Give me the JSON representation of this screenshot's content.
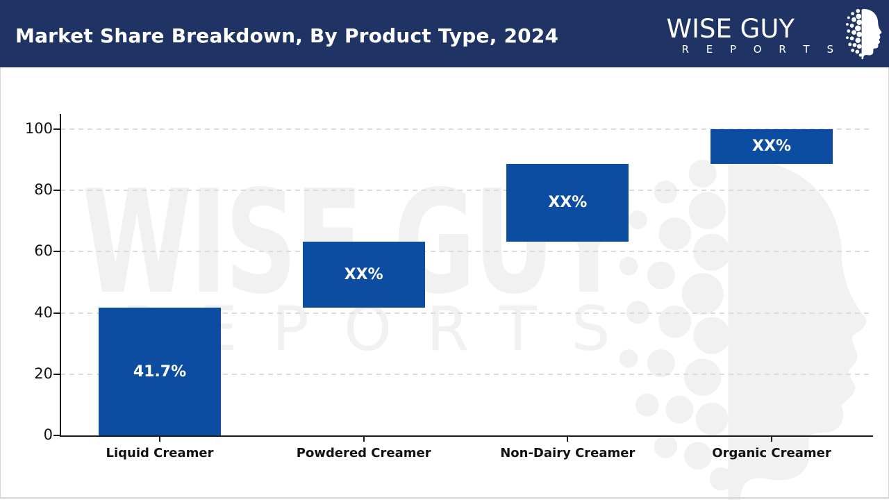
{
  "header": {
    "title": "Market Share Breakdown, By Product Type, 2024",
    "bg_color": "#1f3464",
    "logo": {
      "name": "WISE GUY",
      "sub": "R E P O R T S"
    }
  },
  "watermark": {
    "big_text": "WISE GUY",
    "sub_text": "REPORTS"
  },
  "chart_data": {
    "type": "bar",
    "subtype": "waterfall",
    "title": "Market Share Breakdown, By Product Type, 2024",
    "categories": [
      "Liquid Creamer",
      "Powdered Creamer",
      "Non-Dairy Creamer",
      "Organic Creamer"
    ],
    "segments": [
      {
        "category": "Liquid Creamer",
        "start": 0,
        "end": 41.7,
        "label": "41.7%"
      },
      {
        "category": "Powdered Creamer",
        "start": 41.7,
        "end": 63.3,
        "label": "XX%"
      },
      {
        "category": "Non-Dairy Creamer",
        "start": 63.3,
        "end": 88.7,
        "label": "XX%"
      },
      {
        "category": "Organic Creamer",
        "start": 88.7,
        "end": 100,
        "label": "XX%"
      }
    ],
    "yticks": [
      0,
      20,
      40,
      60,
      80,
      100
    ],
    "ylim": [
      0,
      105
    ],
    "xlabel": "",
    "ylabel": "",
    "bar_color": "#0c4da2",
    "grid": "horizontal-dashed",
    "legend": "none"
  }
}
